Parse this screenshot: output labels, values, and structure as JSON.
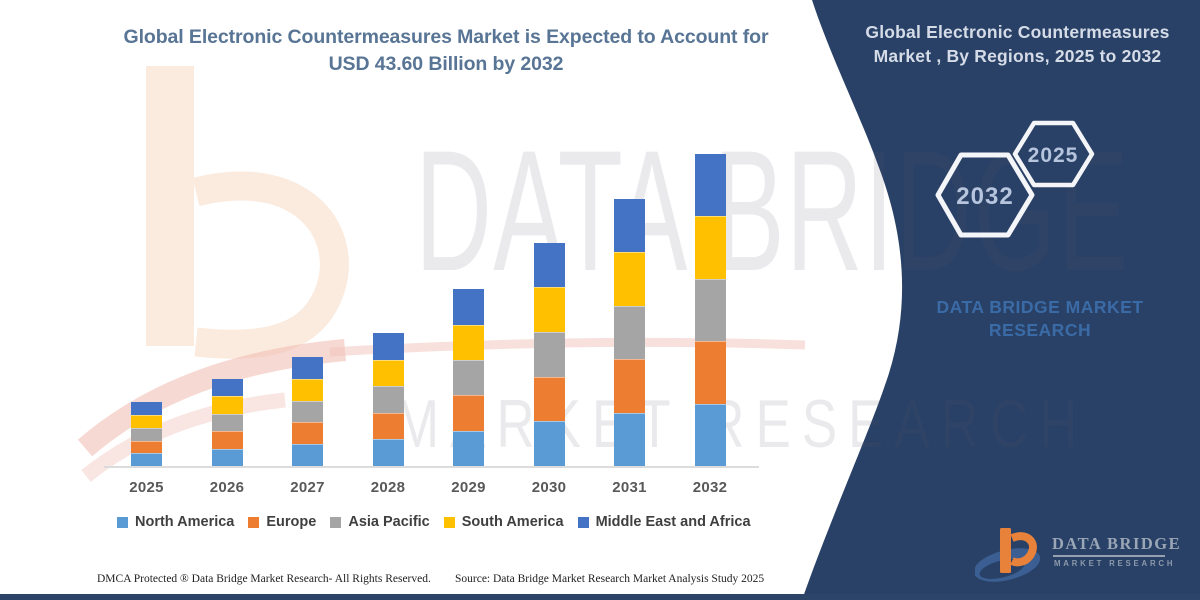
{
  "title": {
    "line1": "Global Electronic Countermeasures Market is Expected to Account for",
    "line2": "USD 43.60 Billion by 2032"
  },
  "panel": {
    "background_color": "#294166",
    "title_line1": "Global Electronic Countermeasures",
    "title_line2": "Market , By Regions, 2025 to 2032",
    "hexagons": {
      "left_label": "2032",
      "right_label": "2025"
    },
    "watermark_line1": "DATA BRIDGE MARKET",
    "watermark_line2": "RESEARCH"
  },
  "watermark": {
    "line1": "DATA BRIDGE",
    "line2": "MARKET RESEARCH"
  },
  "chart_data": {
    "type": "bar",
    "stacked": true,
    "title": "Global Electronic Countermeasures Market, By Regions, 2025 to 2032",
    "unit": "USD Billion",
    "categories": [
      "2025",
      "2026",
      "2027",
      "2028",
      "2029",
      "2030",
      "2031",
      "2032"
    ],
    "totals": [
      8.9,
      12.2,
      15.2,
      18.6,
      24.7,
      31.2,
      37.3,
      43.6
    ],
    "series": [
      {
        "name": "North America",
        "color": "#5B9BD5",
        "values": [
          1.78,
          2.44,
          3.04,
          3.72,
          4.94,
          6.24,
          7.46,
          8.72
        ]
      },
      {
        "name": "Europe",
        "color": "#ED7D31",
        "values": [
          1.78,
          2.44,
          3.04,
          3.72,
          4.94,
          6.24,
          7.46,
          8.72
        ]
      },
      {
        "name": "Asia Pacific",
        "color": "#A5A5A5",
        "values": [
          1.78,
          2.44,
          3.04,
          3.72,
          4.94,
          6.24,
          7.46,
          8.72
        ]
      },
      {
        "name": "South America",
        "color": "#FFC000",
        "values": [
          1.78,
          2.44,
          3.04,
          3.72,
          4.94,
          6.24,
          7.46,
          8.72
        ]
      },
      {
        "name": "Middle East and Africa",
        "color": "#4472C4",
        "values": [
          1.78,
          2.44,
          3.04,
          3.72,
          4.94,
          6.24,
          7.46,
          8.72
        ]
      }
    ],
    "ylim": [
      0,
      43.6
    ],
    "grid": false,
    "y_axis_visible": false,
    "legend_position": "bottom"
  },
  "logo": {
    "name": "DATA BRIDGE",
    "tagline": "MARKET RESEARCH"
  },
  "footer": {
    "left": "DMCA Protected ® Data Bridge Market Research-  All Rights Reserved.",
    "source": "Source: Data Bridge Market Research  Market Analysis Study 2025"
  }
}
